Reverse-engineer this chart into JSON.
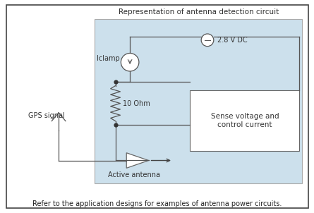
{
  "title": "Representation of antenna detection circuit",
  "footer": "Refer to the application designs for examples of antenna power circuits.",
  "bg_color": "#cce0ec",
  "outer_border_color": "#444444",
  "inner_border_color": "#888888",
  "sense_box_label": "Sense voltage and\ncontrol current",
  "vdc_label": "2.8 V DC",
  "iclamp_label": "Iclamp",
  "resistor_label": "10 Ohm",
  "gps_label": "GPS signal",
  "antenna_label": "Active antenna",
  "line_color": "#555555",
  "dot_color": "#333333"
}
